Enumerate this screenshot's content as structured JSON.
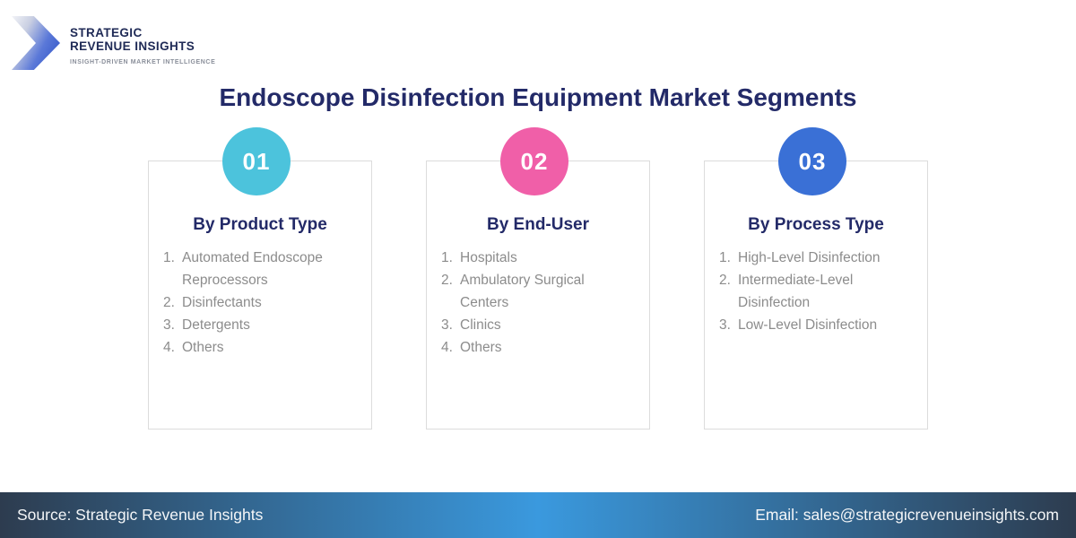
{
  "brand": {
    "name_line1": "STRATEGIC",
    "name_line2": "REVENUE INSIGHTS",
    "tagline": "INSIGHT-DRIVEN MARKET INTELLIGENCE"
  },
  "title": "Endoscope Disinfection Equipment Market Segments",
  "cards": [
    {
      "number": "01",
      "accent": "#4cc3dc",
      "heading": "By Product Type",
      "items": [
        "Automated Endoscope Reprocessors",
        "Disinfectants",
        "Detergents",
        "Others"
      ]
    },
    {
      "number": "02",
      "accent": "#f05fa8",
      "heading": "By End-User",
      "items": [
        "Hospitals",
        "Ambulatory Surgical Centers",
        "Clinics",
        "Others"
      ]
    },
    {
      "number": "03",
      "accent": "#3a70d6",
      "heading": "By Process Type",
      "items": [
        "High-Level Disinfection",
        "Intermediate-Level Disinfection",
        "Low-Level Disinfection"
      ]
    }
  ],
  "footer": {
    "source": "Source: Strategic Revenue Insights",
    "email": "Email: sales@strategicrevenueinsights.com"
  },
  "colors": {
    "title_navy": "#232a68",
    "logo_navy": "#1f2a56",
    "list_gray": "#8c8c8c",
    "card_border": "#dcdcdc",
    "footer_dark": "#2d3c4f",
    "footer_blue": "#3a99de"
  }
}
